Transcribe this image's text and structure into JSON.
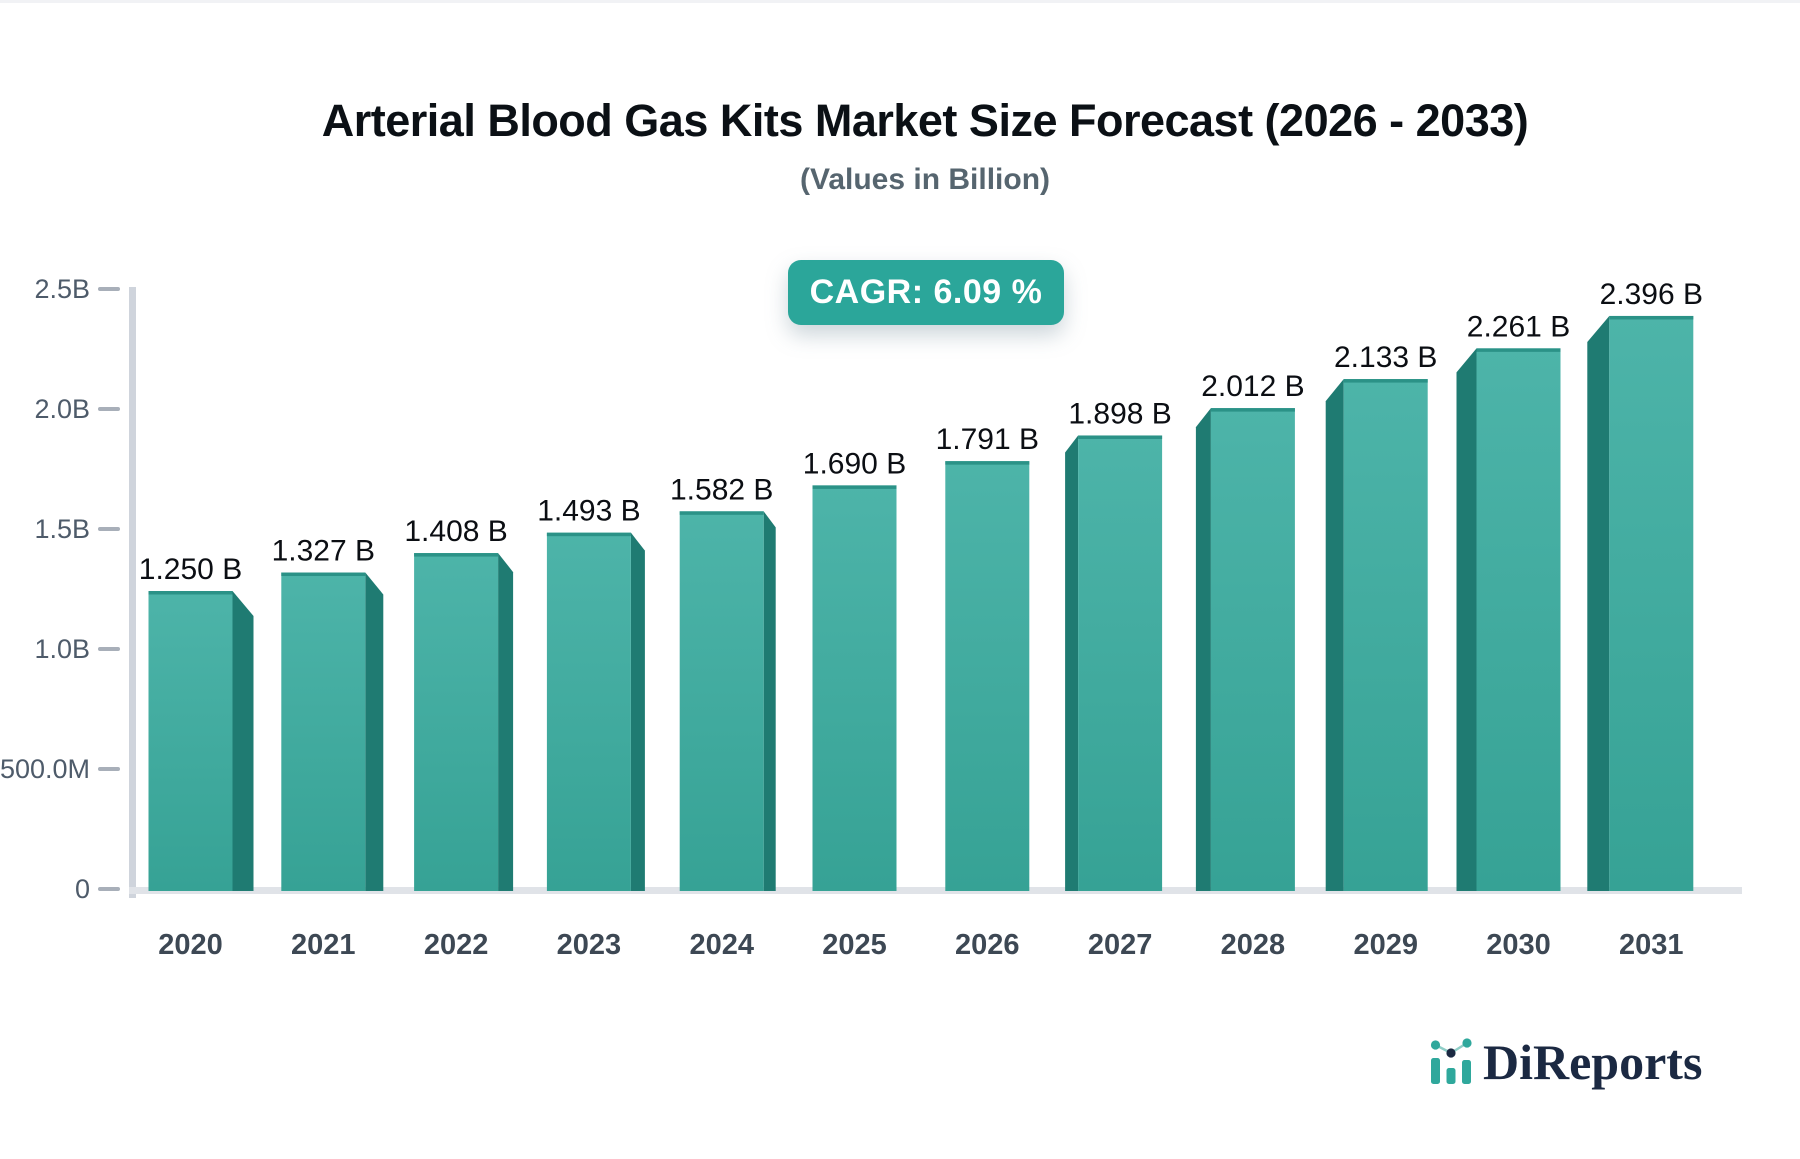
{
  "badge": {
    "text": "CAGR: 6.09 %"
  },
  "brand": {
    "name": "DiReports",
    "icon": "mini-bar-line-chart-icon"
  },
  "colors": {
    "accent": "#2BA69A",
    "bar_face_top": "#4DB4A9",
    "bar_face_bottom": "#36A295",
    "bar_side": "#1F7B72",
    "bar_top_edge": "#2B9287",
    "axis_vertical": "#CFD4DC",
    "axis_horizontal": "#E0E3E8",
    "tick_dash": "#A8AFB9",
    "y_label": "#4E5B6A",
    "x_label": "#3D4854",
    "value_label": "#0B0E13",
    "title": "#0B1015",
    "subtitle": "#56656F",
    "brand_navy": "#1B2942",
    "brand_teal": "#2FA89C",
    "brand_teal_light": "#8FCEC7",
    "badge_text": "#FFFFFF"
  },
  "chart_data": {
    "type": "bar",
    "title": "Arterial Blood Gas Kits Market Size Forecast (2026 - 2033)",
    "subtitle": "(Values in Billion)",
    "cagr_percent": 6.09,
    "categories": [
      "2020",
      "2021",
      "2022",
      "2023",
      "2024",
      "2025",
      "2026",
      "2027",
      "2028",
      "2029",
      "2030",
      "2031"
    ],
    "values": [
      1.25,
      1.327,
      1.408,
      1.493,
      1.582,
      1.69,
      1.791,
      1.898,
      2.012,
      2.133,
      2.261,
      2.396
    ],
    "value_labels": [
      "1.250 B",
      "1.327 B",
      "1.408 B",
      "1.493 B",
      "1.582 B",
      "1.690 B",
      "1.791 B",
      "1.898 B",
      "2.012 B",
      "2.133 B",
      "2.261 B",
      "2.396 B"
    ],
    "value_unit": "B",
    "y_tick_labels": [
      "2.5B",
      "2.0B",
      "1.5B",
      "1.0B",
      "500.0M",
      "0"
    ],
    "y_tick_values": [
      2.5,
      2.0,
      1.5,
      1.0,
      0.5,
      0
    ],
    "ylim": [
      0,
      2.5
    ],
    "grid": false,
    "legend": false,
    "bar_style": "3d-beveled-teal"
  }
}
